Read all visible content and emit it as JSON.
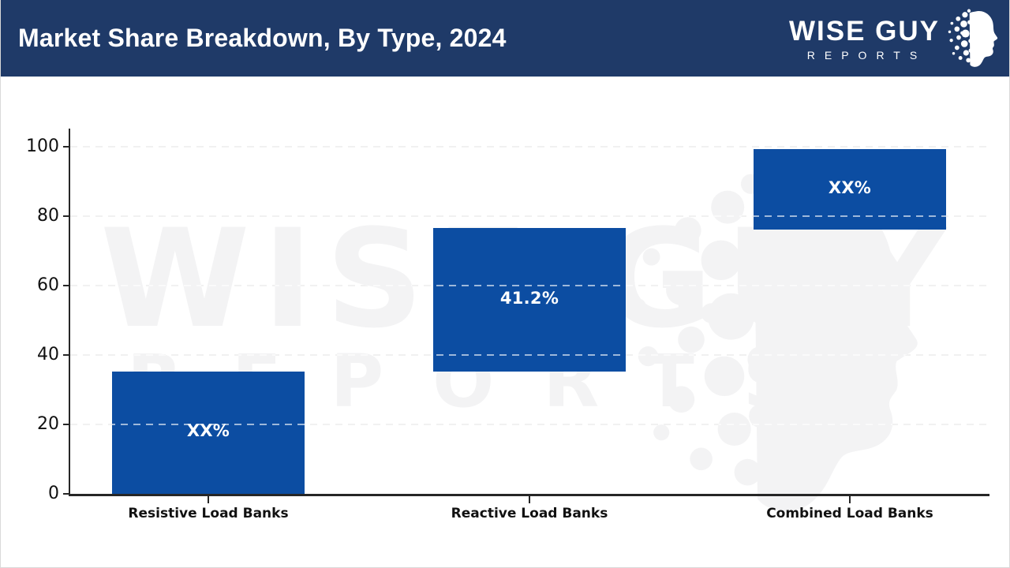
{
  "header": {
    "title": "Market Share Breakdown, By Type, 2024",
    "bg_color": "#1f3a68",
    "logo": {
      "line1": "WISE GUY",
      "line2": "REPORTS",
      "icon": "dotted-face-profile"
    }
  },
  "watermark": {
    "line1": "WISE GUY",
    "line2": "REPORTS"
  },
  "chart_data": {
    "type": "bar",
    "subtype": "floating-column",
    "title": "Market Share Breakdown, By Type, 2024",
    "categories": [
      "Resistive Load Banks",
      "Reactive Load Banks",
      "Combined Load Banks"
    ],
    "series": [
      {
        "name": "Market share (%)",
        "segments": [
          {
            "category": "Resistive Load Banks",
            "from": 0,
            "to": 35.3,
            "label": "XX%"
          },
          {
            "category": "Reactive Load Banks",
            "from": 35.3,
            "to": 76.5,
            "label": "41.2%"
          },
          {
            "category": "Combined Load Banks",
            "from": 76.2,
            "to": 99.4,
            "label": "XX%"
          }
        ]
      }
    ],
    "xlabel": "",
    "ylabel": "",
    "ylim": [
      0,
      100
    ],
    "yticks": [
      0,
      20,
      40,
      60,
      80,
      100
    ],
    "grid": "dashed-horizontal",
    "grid_over_bars": true,
    "legend": false,
    "bar_color": "#0c4da2",
    "bar_label_color": "#ffffff",
    "axis_color": "#262626"
  }
}
